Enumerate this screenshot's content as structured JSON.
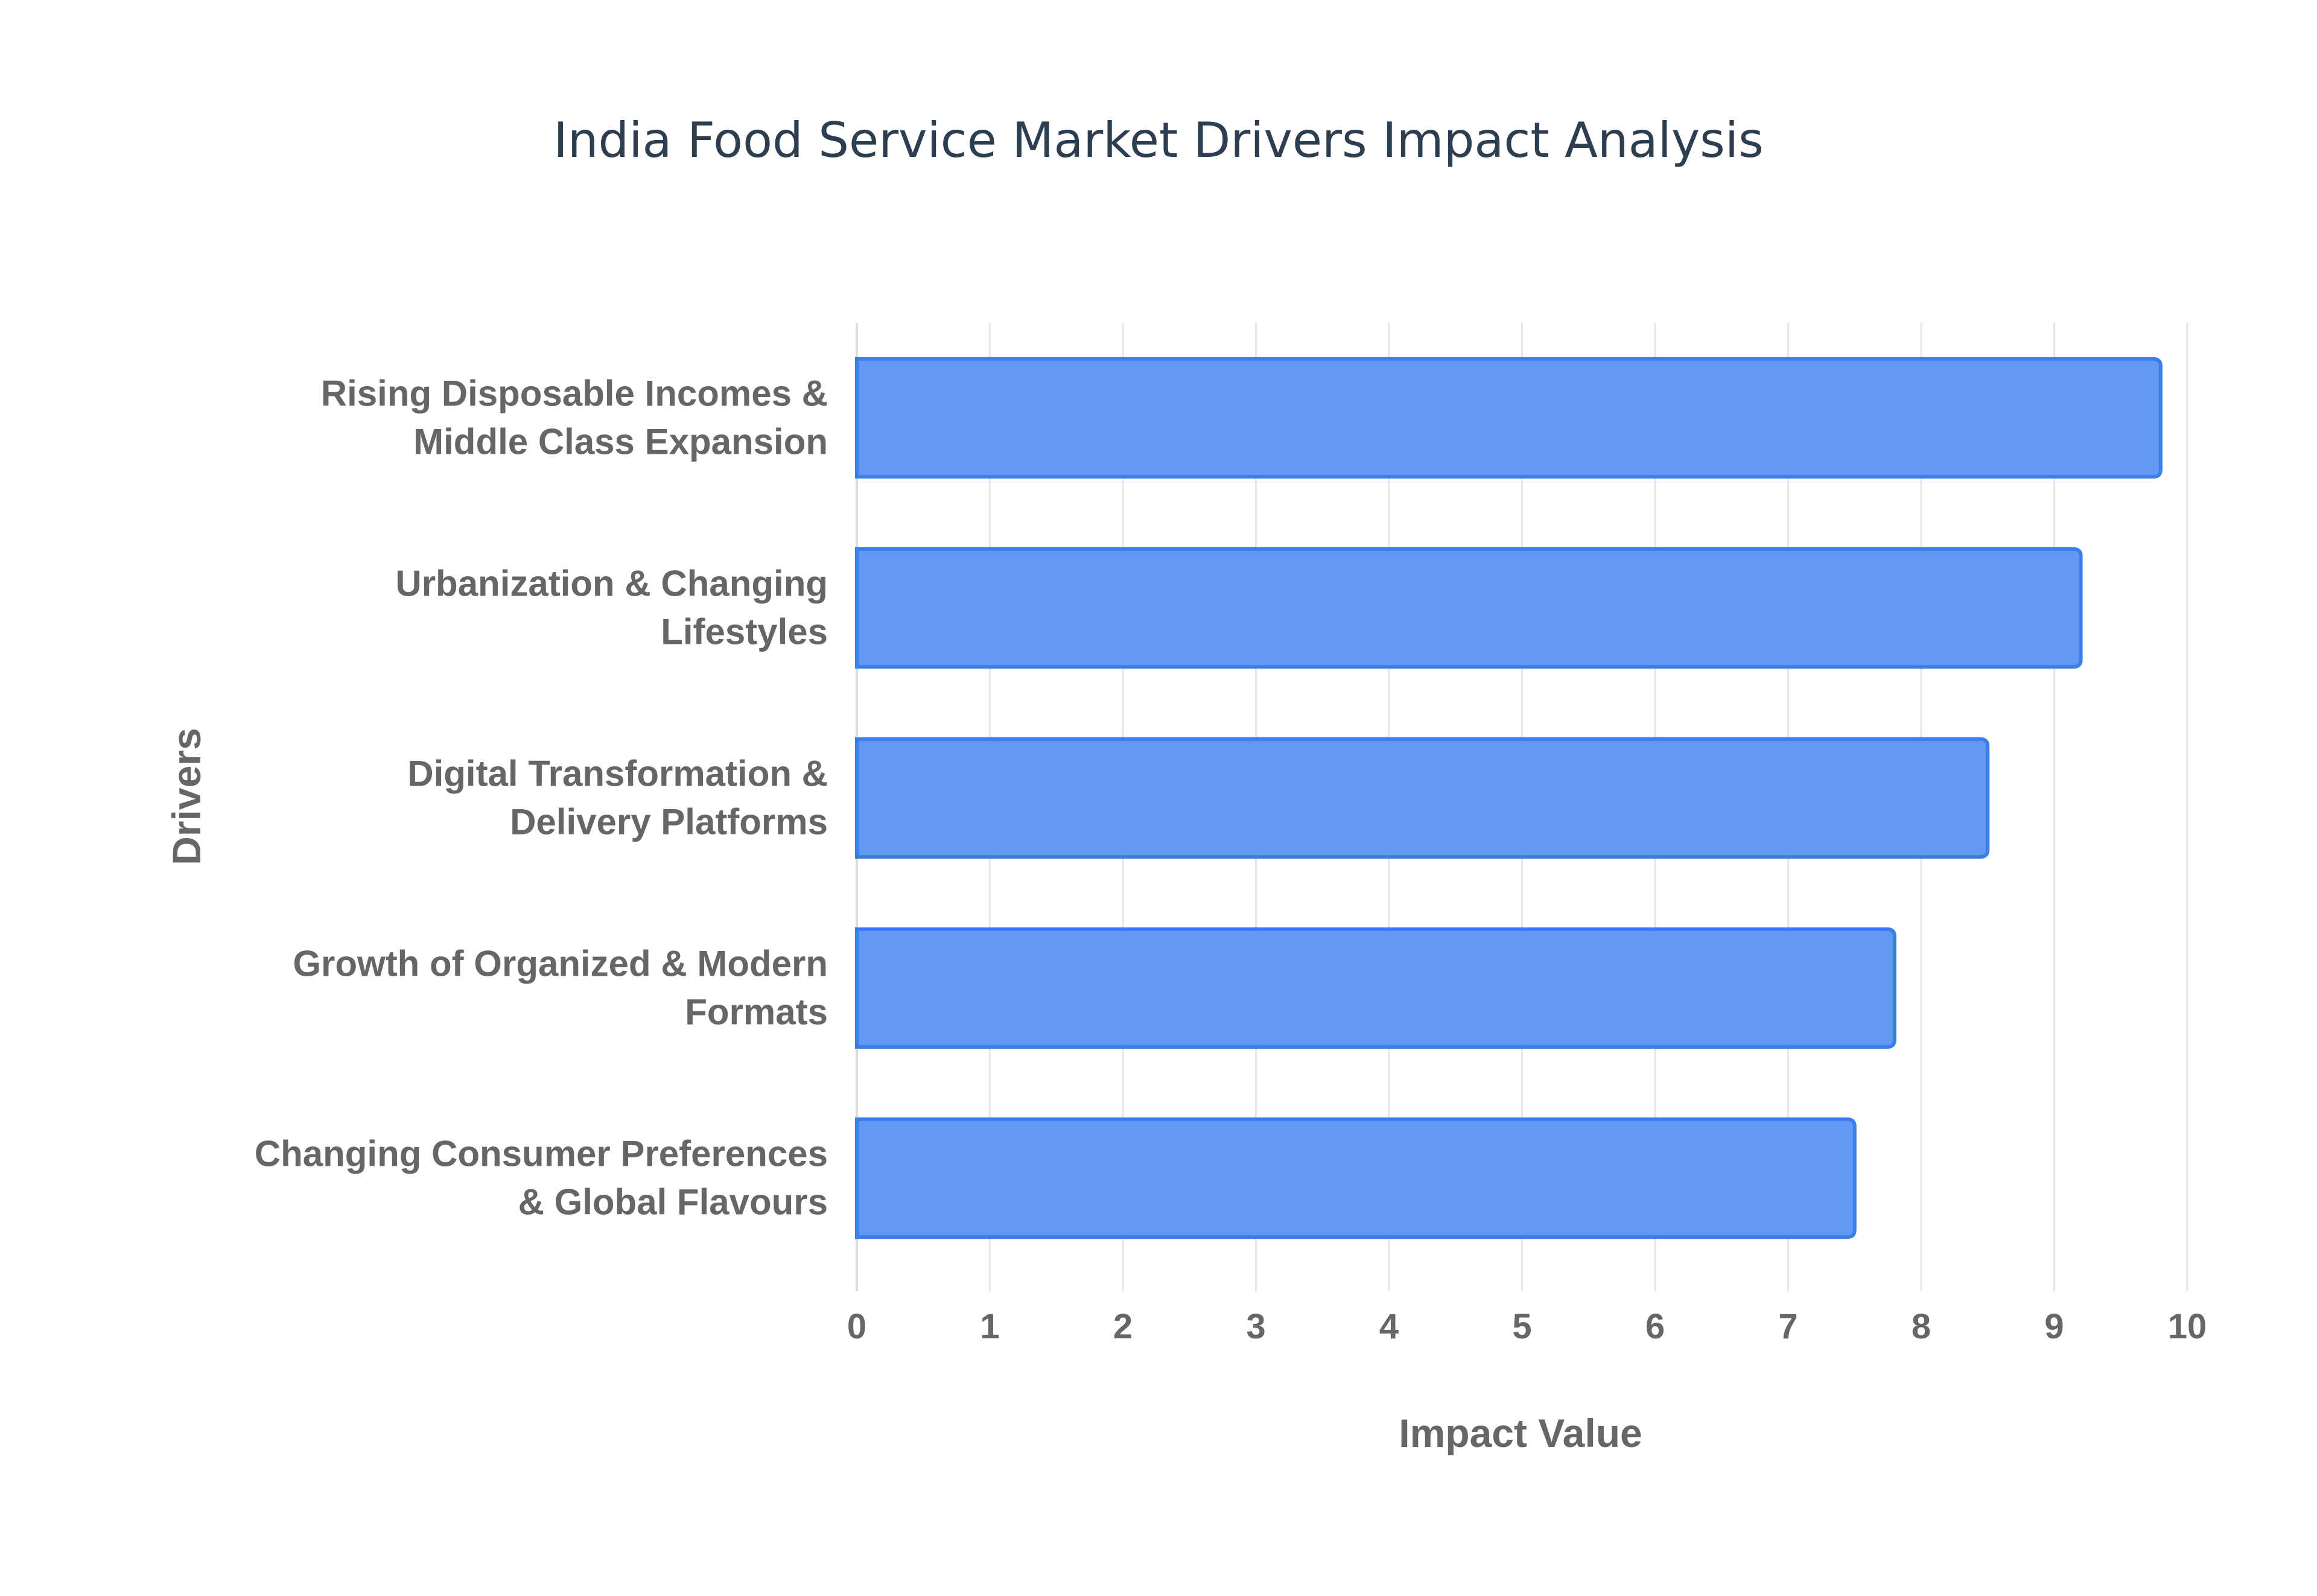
{
  "chart_data": {
    "type": "bar",
    "orientation": "horizontal",
    "title": "India Food Service Market Drivers Impact Analysis",
    "xlabel": "Impact Value",
    "ylabel": "Drivers",
    "categories": [
      [
        "Rising Disposable Incomes &",
        "Middle Class Expansion"
      ],
      [
        "Urbanization & Changing",
        "Lifestyles"
      ],
      [
        "Digital Transformation &",
        "Delivery Platforms"
      ],
      [
        "Growth of Organized & Modern",
        "Formats"
      ],
      [
        "Changing Consumer Preferences",
        "& Global Flavours"
      ]
    ],
    "values": [
      9.8,
      9.2,
      8.5,
      7.8,
      7.5
    ],
    "xlim": [
      0,
      10
    ],
    "xticks": [
      0,
      1,
      2,
      3,
      4,
      5,
      6,
      7,
      8,
      9,
      10
    ],
    "grid": true,
    "legend": false,
    "colors": {
      "bar_fill": "#6399f4",
      "bar_stroke": "#3b7de9",
      "title": "#2c3e50",
      "labels": "#666666",
      "grid": "#e6e6e6"
    }
  }
}
